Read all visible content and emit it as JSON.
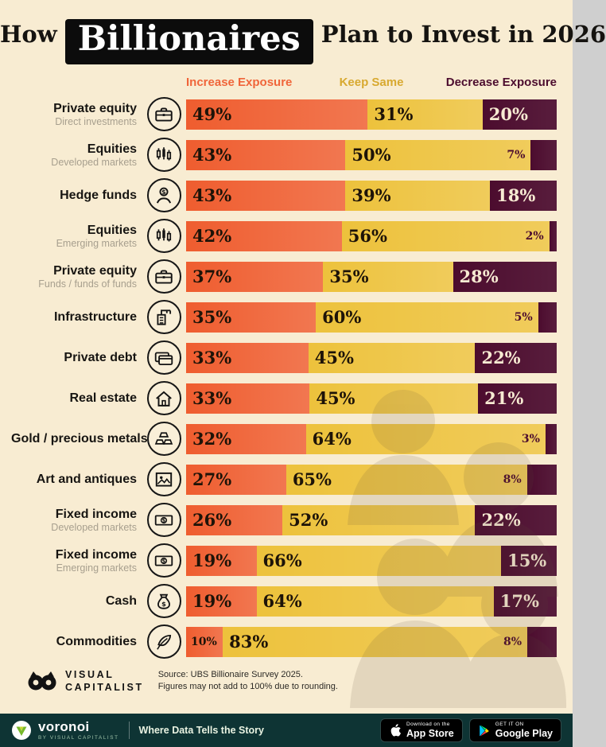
{
  "title": {
    "prefix": "How",
    "highlight": "Billionaires",
    "suffix": "Plan to Invest in 2026"
  },
  "legend": {
    "increase": "Increase Exposure",
    "same": "Keep Same",
    "decrease": "Decrease Exposure"
  },
  "colors": {
    "background": "#f8ecd2",
    "increase": "#ef5d2f",
    "same": "#edc23c",
    "decrease": "#4c0c2e",
    "increase_header": "#f0653a",
    "same_header": "#d8a930"
  },
  "chart_data": {
    "type": "bar",
    "stacked": true,
    "unit": "%",
    "title": "How Billionaires Plan to Invest in 2026",
    "legend_position": "top",
    "series_names": [
      "Increase Exposure",
      "Keep Same",
      "Decrease Exposure"
    ],
    "rows": [
      {
        "label": "Private equity",
        "sublabel": "Direct investments",
        "icon": "briefcase-icon",
        "increase": 49,
        "same": 31,
        "decrease": 20
      },
      {
        "label": "Equities",
        "sublabel": "Developed markets",
        "icon": "candlestick-icon",
        "increase": 43,
        "same": 50,
        "decrease": 7
      },
      {
        "label": "Hedge funds",
        "sublabel": "",
        "icon": "fund-manager-icon",
        "increase": 43,
        "same": 39,
        "decrease": 18
      },
      {
        "label": "Equities",
        "sublabel": "Emerging markets",
        "icon": "candlestick-icon",
        "increase": 42,
        "same": 56,
        "decrease": 2
      },
      {
        "label": "Private equity",
        "sublabel": "Funds / funds of funds",
        "icon": "briefcase-icon",
        "increase": 37,
        "same": 35,
        "decrease": 28
      },
      {
        "label": "Infrastructure",
        "sublabel": "",
        "icon": "infrastructure-icon",
        "increase": 35,
        "same": 60,
        "decrease": 5
      },
      {
        "label": "Private debt",
        "sublabel": "",
        "icon": "credit-cards-icon",
        "increase": 33,
        "same": 45,
        "decrease": 22
      },
      {
        "label": "Real estate",
        "sublabel": "",
        "icon": "house-icon",
        "increase": 33,
        "same": 45,
        "decrease": 21
      },
      {
        "label": "Gold / precious metals",
        "sublabel": "",
        "icon": "gold-bars-icon",
        "increase": 32,
        "same": 64,
        "decrease": 3
      },
      {
        "label": "Art and antiques",
        "sublabel": "",
        "icon": "picture-frame-icon",
        "increase": 27,
        "same": 65,
        "decrease": 8
      },
      {
        "label": "Fixed income",
        "sublabel": "Developed markets",
        "icon": "banknote-icon",
        "increase": 26,
        "same": 52,
        "decrease": 22
      },
      {
        "label": "Fixed income",
        "sublabel": "Emerging markets",
        "icon": "banknote-icon",
        "increase": 19,
        "same": 66,
        "decrease": 15
      },
      {
        "label": "Cash",
        "sublabel": "",
        "icon": "money-bag-icon",
        "increase": 19,
        "same": 64,
        "decrease": 17
      },
      {
        "label": "Commodities",
        "sublabel": "",
        "icon": "feather-icon",
        "increase": 10,
        "same": 83,
        "decrease": 8
      }
    ]
  },
  "footer": {
    "brand_line1": "VISUAL",
    "brand_line2": "CAPITALIST",
    "source_line1": "Source: UBS Billionaire Survey 2025.",
    "source_line2": "Figures may not add to 100% due to rounding."
  },
  "bottombar": {
    "brand": "voronoi",
    "brand_sub": "BY VISUAL CAPITALIST",
    "tagline": "Where Data Tells the Story",
    "appstore_top": "Download on the",
    "appstore_bottom": "App Store",
    "gplay_top": "GET IT ON",
    "gplay_bottom": "Google Play"
  }
}
